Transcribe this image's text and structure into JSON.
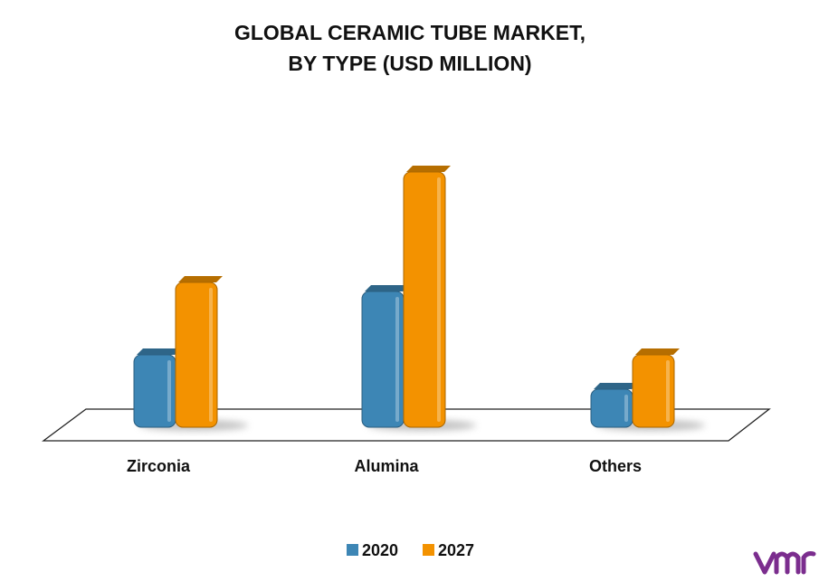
{
  "chart_data": {
    "type": "bar",
    "title": "GLOBAL CERAMIC TUBE MARKET,",
    "subtitle": "BY TYPE (USD MILLION)",
    "categories": [
      "Zirconia",
      "Alumina",
      "Others"
    ],
    "series": [
      {
        "name": "2020",
        "color": "#3d86b5",
        "values": [
          80,
          150,
          42
        ]
      },
      {
        "name": "2027",
        "color": "#f39200",
        "values": [
          160,
          282,
          80
        ]
      }
    ],
    "legend": "bottom"
  }
}
